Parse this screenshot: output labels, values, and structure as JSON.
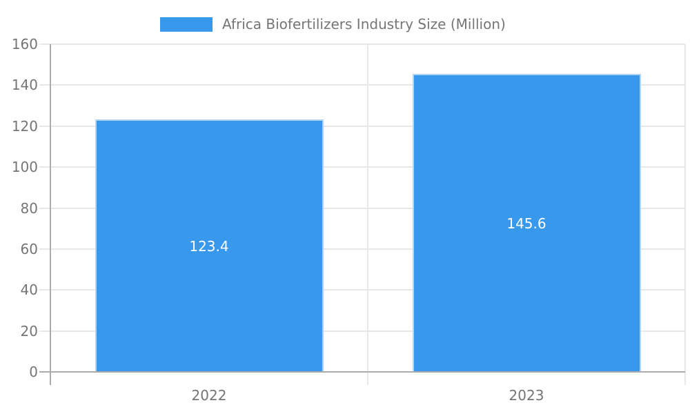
{
  "chart_data": {
    "type": "bar",
    "title": "",
    "xlabel": "",
    "ylabel": "",
    "legend": "Africa Biofertilizers Industry Size (Million)",
    "legend_position": "top-center",
    "categories": [
      "2022",
      "2023"
    ],
    "values": [
      123.4,
      145.6
    ],
    "value_labels": [
      "123.4",
      "145.6"
    ],
    "ylim": [
      0,
      160
    ],
    "yticks": [
      0,
      20,
      40,
      60,
      80,
      100,
      120,
      140,
      160
    ],
    "grid": true,
    "colors": {
      "bar": "#3899EC",
      "bar_border": "#b3d5f5",
      "gridline": "#e7e7e7",
      "axis": "#ababab",
      "tick_label": "#757575",
      "value_label": "#ffffff"
    }
  }
}
